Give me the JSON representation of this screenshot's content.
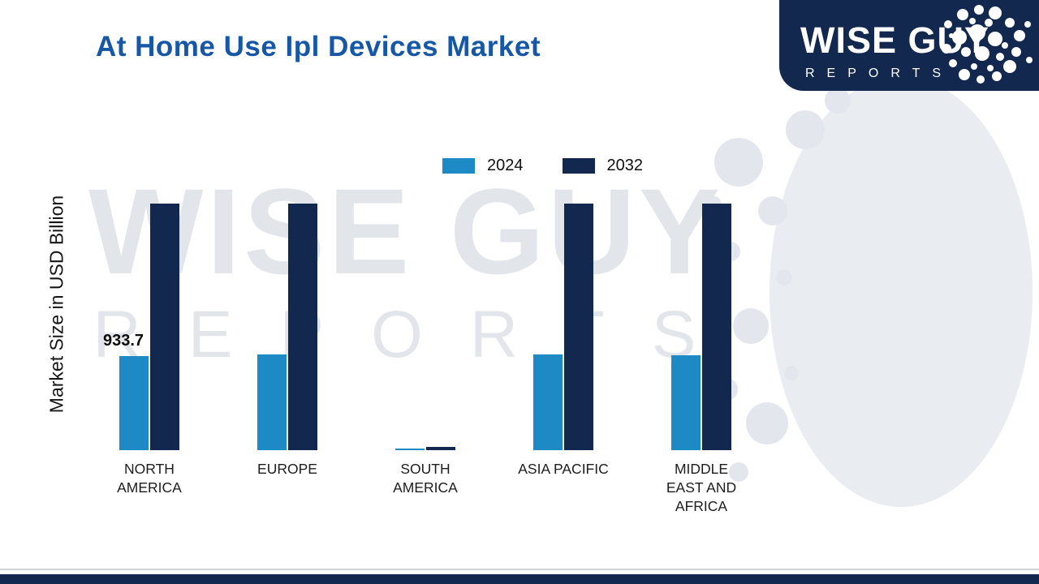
{
  "page": {
    "title": "At Home Use Ipl Devices Market"
  },
  "chart_data": {
    "type": "bar",
    "title": "At Home Use Ipl Devices Market",
    "xlabel": "",
    "ylabel": "Market Size in USD Billion",
    "ylim": [
      0,
      2500
    ],
    "grid": false,
    "legend_position": "top",
    "categories": [
      "NORTH AMERICA",
      "EUROPE",
      "SOUTH AMERICA",
      "ASIA PACIFIC",
      "MIDDLE EAST AND AFRICA"
    ],
    "series": [
      {
        "name": "2024",
        "color": "#1d8ac5",
        "values": [
          933.7,
          950,
          20,
          950,
          945
        ]
      },
      {
        "name": "2032",
        "color": "#12284e",
        "values": [
          2450,
          2450,
          30,
          2450,
          2450
        ]
      }
    ],
    "annotations": [
      {
        "series": "2024",
        "category": "NORTH AMERICA",
        "text": "933.7"
      }
    ]
  },
  "watermark": {
    "line1": "WISE GUY",
    "line2": "REPORTS"
  },
  "logo": {
    "line1": "WISE GUY",
    "line2": "REPORTS"
  },
  "colors": {
    "title": "#1657a6",
    "series_2024": "#1d8ac5",
    "series_2032": "#12284e",
    "footer_bar": "#12284e",
    "watermark": "#e2e5ea"
  }
}
